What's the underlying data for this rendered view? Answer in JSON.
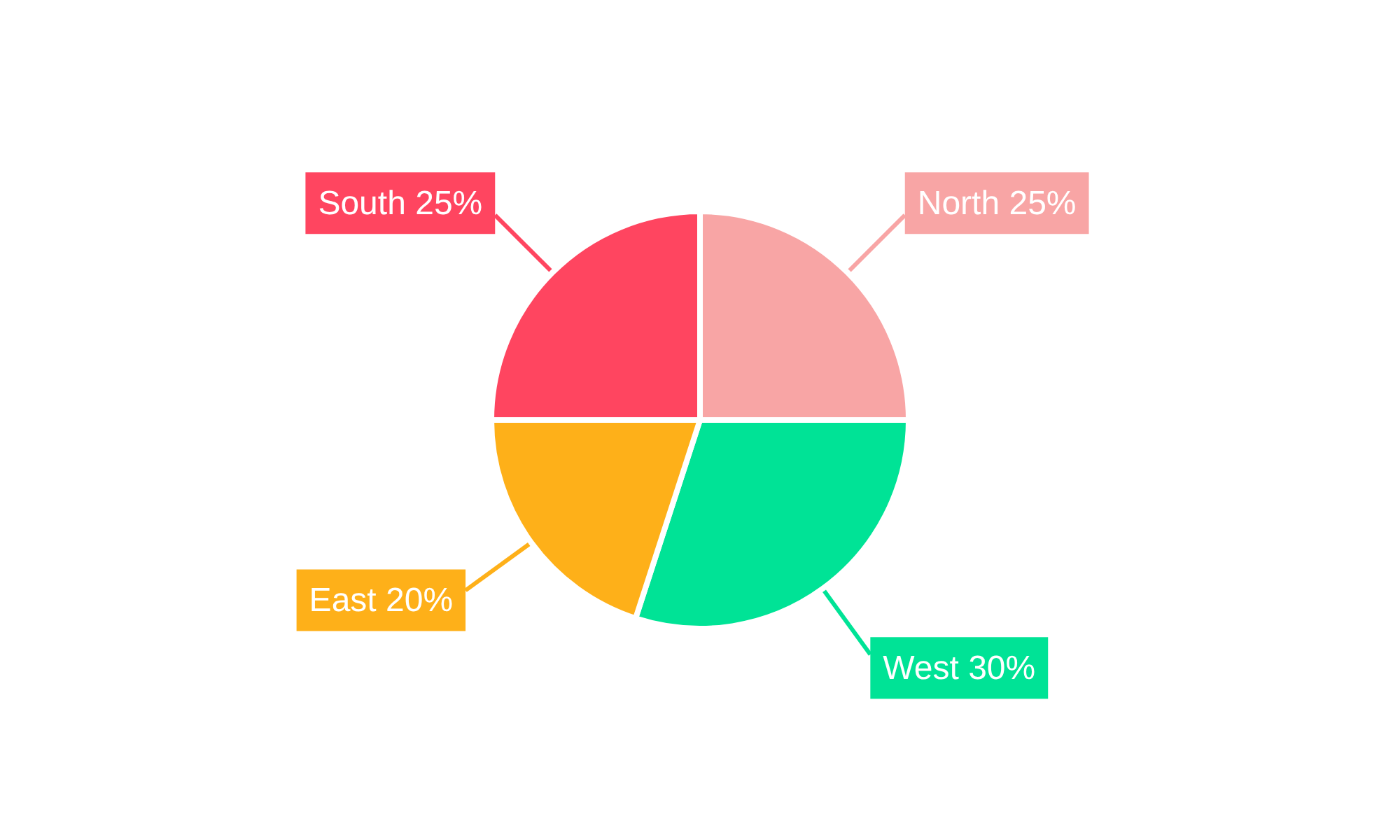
{
  "chart_data": {
    "type": "pie",
    "categories": [
      "North",
      "West",
      "East",
      "South"
    ],
    "values": [
      25,
      30,
      20,
      25
    ],
    "colors": [
      "#f8a5a5",
      "#00e396",
      "#feb019",
      "#ff4560"
    ],
    "value_labels": [
      "25%",
      "30%",
      "20%",
      "25%"
    ],
    "legend": false
  }
}
